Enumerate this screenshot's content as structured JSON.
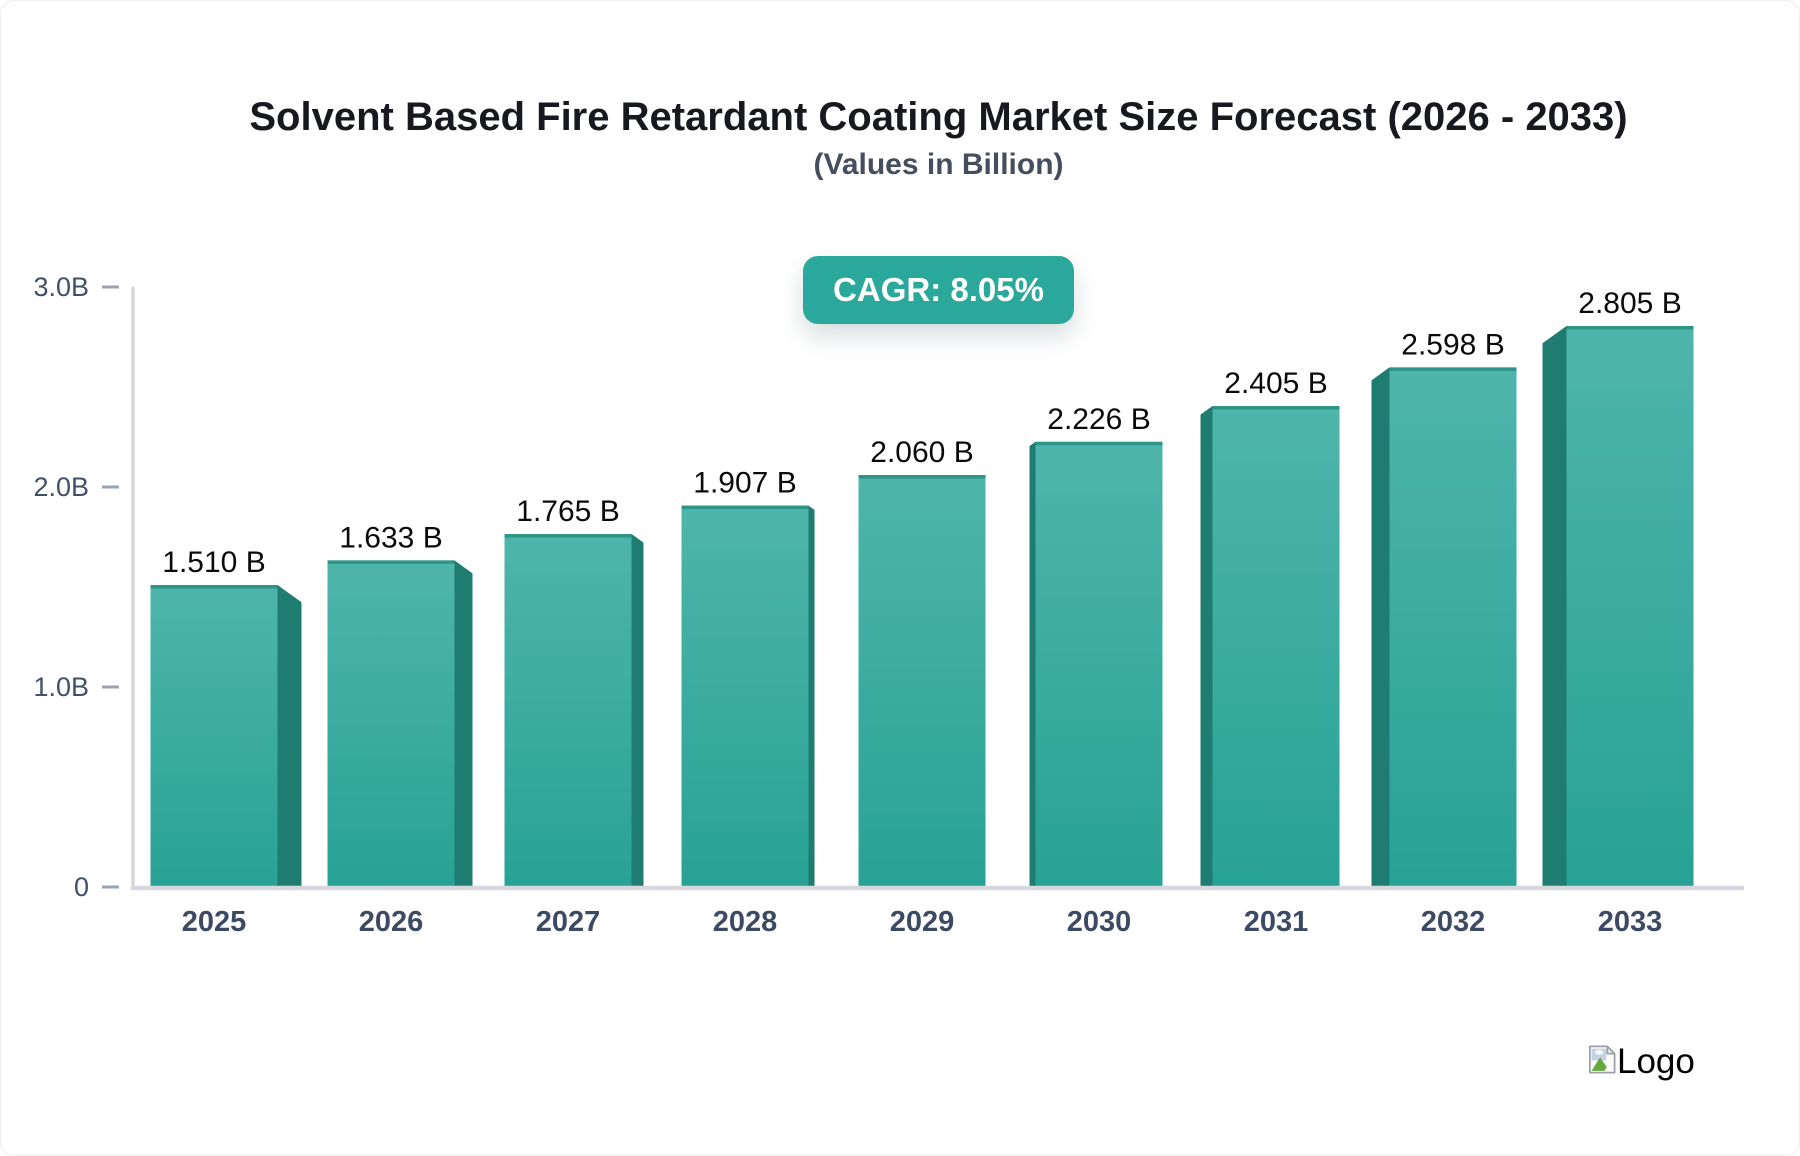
{
  "header": {
    "title": "Solvent Based Fire Retardant Coating Market Size Forecast (2026 - 2033)",
    "subtitle": "(Values in Billion)"
  },
  "cagr_badge": {
    "label": "CAGR: 8.05%"
  },
  "chart_data": {
    "type": "bar",
    "title": "Solvent Based Fire Retardant Coating Market Size Forecast (2026 - 2033)",
    "subtitle": "(Values in Billion)",
    "categories": [
      "2025",
      "2026",
      "2027",
      "2028",
      "2029",
      "2030",
      "2031",
      "2032",
      "2033"
    ],
    "values": [
      1.51,
      1.633,
      1.765,
      1.907,
      2.06,
      2.226,
      2.405,
      2.598,
      2.805
    ],
    "value_labels": [
      "1.510 B",
      "1.633 B",
      "1.765 B",
      "1.907 B",
      "2.060 B",
      "2.226 B",
      "2.405 B",
      "2.598 B",
      "2.805 B"
    ],
    "cagr_label": "CAGR: 8.05%",
    "xlabel": "",
    "ylabel": "",
    "ylim": [
      0,
      3.0
    ],
    "yticks": {
      "values": [
        0,
        1,
        2,
        3
      ],
      "labels": [
        "0",
        "1.0B",
        "2.0B",
        "3.0B"
      ]
    },
    "grid": false,
    "legend": false,
    "bar_colors": {
      "face_top": "#4fb5ab",
      "face_bottom": "#28a295",
      "side": "#1e7d70",
      "top_edge": "#2d9488"
    },
    "badge_color": "#2aa89c",
    "axis_color": "#d6d8dd",
    "tick_color": "#9aa3ae",
    "label_colors": {
      "value": "#0a0a0a",
      "category": "#3c4a63",
      "ytick": "#41506b"
    }
  },
  "footer": {
    "logo_alt": "Logo"
  }
}
